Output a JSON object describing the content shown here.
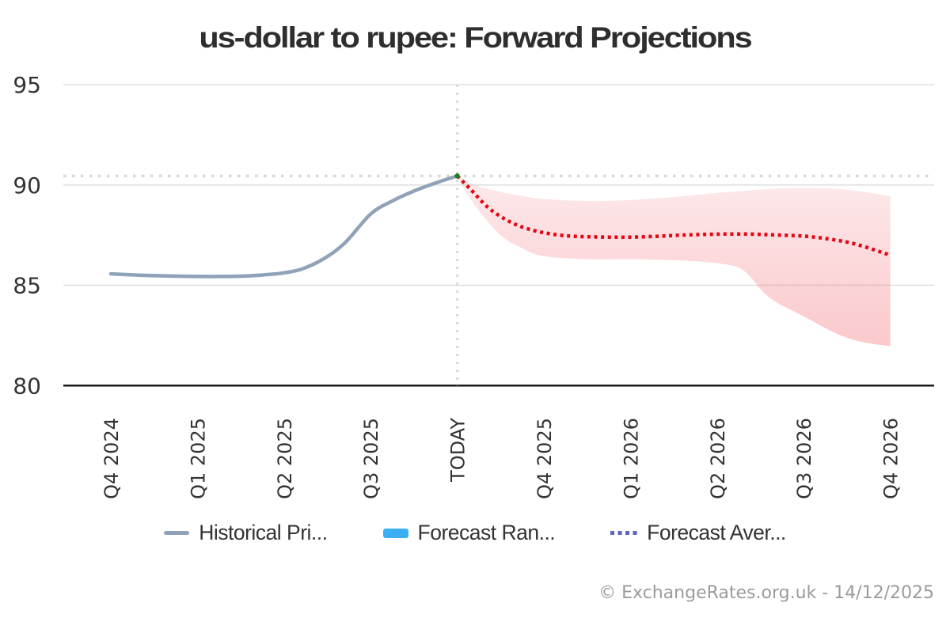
{
  "title": "us-dollar to rupee: Forward Projections",
  "copyright": "© ExchangeRates.org.uk - 14/12/2025",
  "legend": {
    "position": "bottom",
    "items": [
      {
        "label": "Historical Pri...",
        "marker": "line",
        "color": "#90a2b8"
      },
      {
        "label": "Forecast Ran...",
        "marker": "band",
        "color": "#3ab0f2"
      },
      {
        "label": "Forecast Aver...",
        "marker": "dots",
        "color": "#5a65c0"
      }
    ]
  },
  "chart_data": {
    "type": "line",
    "title": "us-dollar to rupee: Forward Projections",
    "xlabel": "",
    "ylabel": "",
    "ylim": [
      80,
      95
    ],
    "yticks": [
      95,
      90,
      85,
      80
    ],
    "grid": "horizontal",
    "x_categories": [
      "Q4 2024",
      "Q1 2025",
      "Q2 2025",
      "Q3 2025",
      "TODAY",
      "Q4 2025",
      "Q1 2026",
      "Q2 2026",
      "Q3 2026",
      "Q4 2026"
    ],
    "today_index": 4,
    "current_rate": 90.45,
    "current_rate_line_color": "#d9d9d9",
    "today_marker_color": "#1e7e1e",
    "series": [
      {
        "name": "Historical Price",
        "color": "#90a2b8",
        "style": "solid",
        "x": [
          0,
          0.35,
          0.7,
          1,
          1.3,
          1.6,
          1.85,
          2,
          2.2,
          2.45,
          2.7,
          3,
          3.25,
          3.5,
          3.75,
          4
        ],
        "y": [
          85.57,
          85.5,
          85.46,
          85.44,
          85.44,
          85.47,
          85.55,
          85.62,
          85.8,
          86.3,
          87.1,
          88.55,
          89.2,
          89.7,
          90.1,
          90.45
        ]
      },
      {
        "name": "Forecast Average",
        "color": "#e30613",
        "style": "dotted",
        "x": [
          4,
          4.15,
          4.35,
          4.55,
          4.75,
          5,
          5.25,
          5.5,
          5.75,
          6,
          6.3,
          6.6,
          7,
          7.4,
          7.7,
          8,
          8.3,
          8.6,
          9
        ],
        "y": [
          90.45,
          89.8,
          88.9,
          88.3,
          87.9,
          87.62,
          87.47,
          87.42,
          87.4,
          87.4,
          87.44,
          87.5,
          87.55,
          87.55,
          87.5,
          87.45,
          87.3,
          87.05,
          86.5
        ]
      }
    ],
    "band": {
      "name": "Forecast Range",
      "fill_color": "#f05a64",
      "opacity_top": 0.13,
      "opacity_bottom": 0.33,
      "x": [
        4,
        4.2,
        4.5,
        4.75,
        5,
        5.5,
        6,
        6.5,
        7,
        7.3,
        7.6,
        8,
        8.4,
        8.7,
        9
      ],
      "upper": [
        90.45,
        90.0,
        89.65,
        89.45,
        89.3,
        89.2,
        89.25,
        89.4,
        89.6,
        89.7,
        89.8,
        89.85,
        89.8,
        89.65,
        89.45
      ],
      "lower": [
        90.45,
        89.0,
        87.5,
        86.85,
        86.45,
        86.3,
        86.3,
        86.25,
        86.1,
        85.75,
        84.4,
        83.45,
        82.55,
        82.15,
        81.97
      ]
    }
  }
}
